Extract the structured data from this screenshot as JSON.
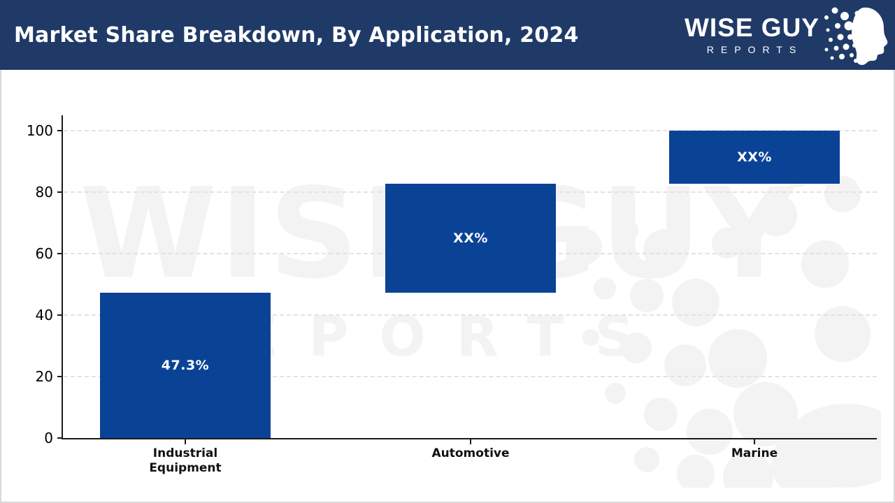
{
  "header": {
    "title": "Market Share Breakdown, By Application, 2024",
    "logo": {
      "name": "WISE GUY",
      "sub": "REPORTS"
    }
  },
  "watermark": {
    "line1": "WISE GUY",
    "line2": "REPORTS"
  },
  "chart_data": {
    "type": "bar",
    "variant": "floating-segment-waterfall",
    "title": "Market Share Breakdown, By Application, 2024",
    "categories": [
      [
        "Industrial",
        "Equipment"
      ],
      [
        "Automotive"
      ],
      [
        "Marine"
      ]
    ],
    "segments": [
      {
        "category": "Industrial Equipment",
        "start": 0,
        "end": 47.3,
        "label": "47.3%"
      },
      {
        "category": "Automotive",
        "start": 47.3,
        "end": 82.7,
        "label": "XX%"
      },
      {
        "category": "Marine",
        "start": 82.7,
        "end": 100,
        "label": "XX%"
      }
    ],
    "y_ticks": [
      0,
      20,
      40,
      60,
      80,
      100
    ],
    "ylim": [
      0,
      105
    ],
    "xlabel": "",
    "ylabel": "",
    "grid": "horizontal-dashed",
    "legend": "none",
    "bar_color": "#0a4396",
    "bar_label_color": "#ffffff",
    "grid_color": "#e2e2e2",
    "axis_color": "#1a1a1a"
  },
  "colors": {
    "header_bg": "#203a68",
    "page_bg": "#ffffff",
    "watermark": "#f3f3f3",
    "border": "#d9d9d9",
    "text": "#111111"
  }
}
